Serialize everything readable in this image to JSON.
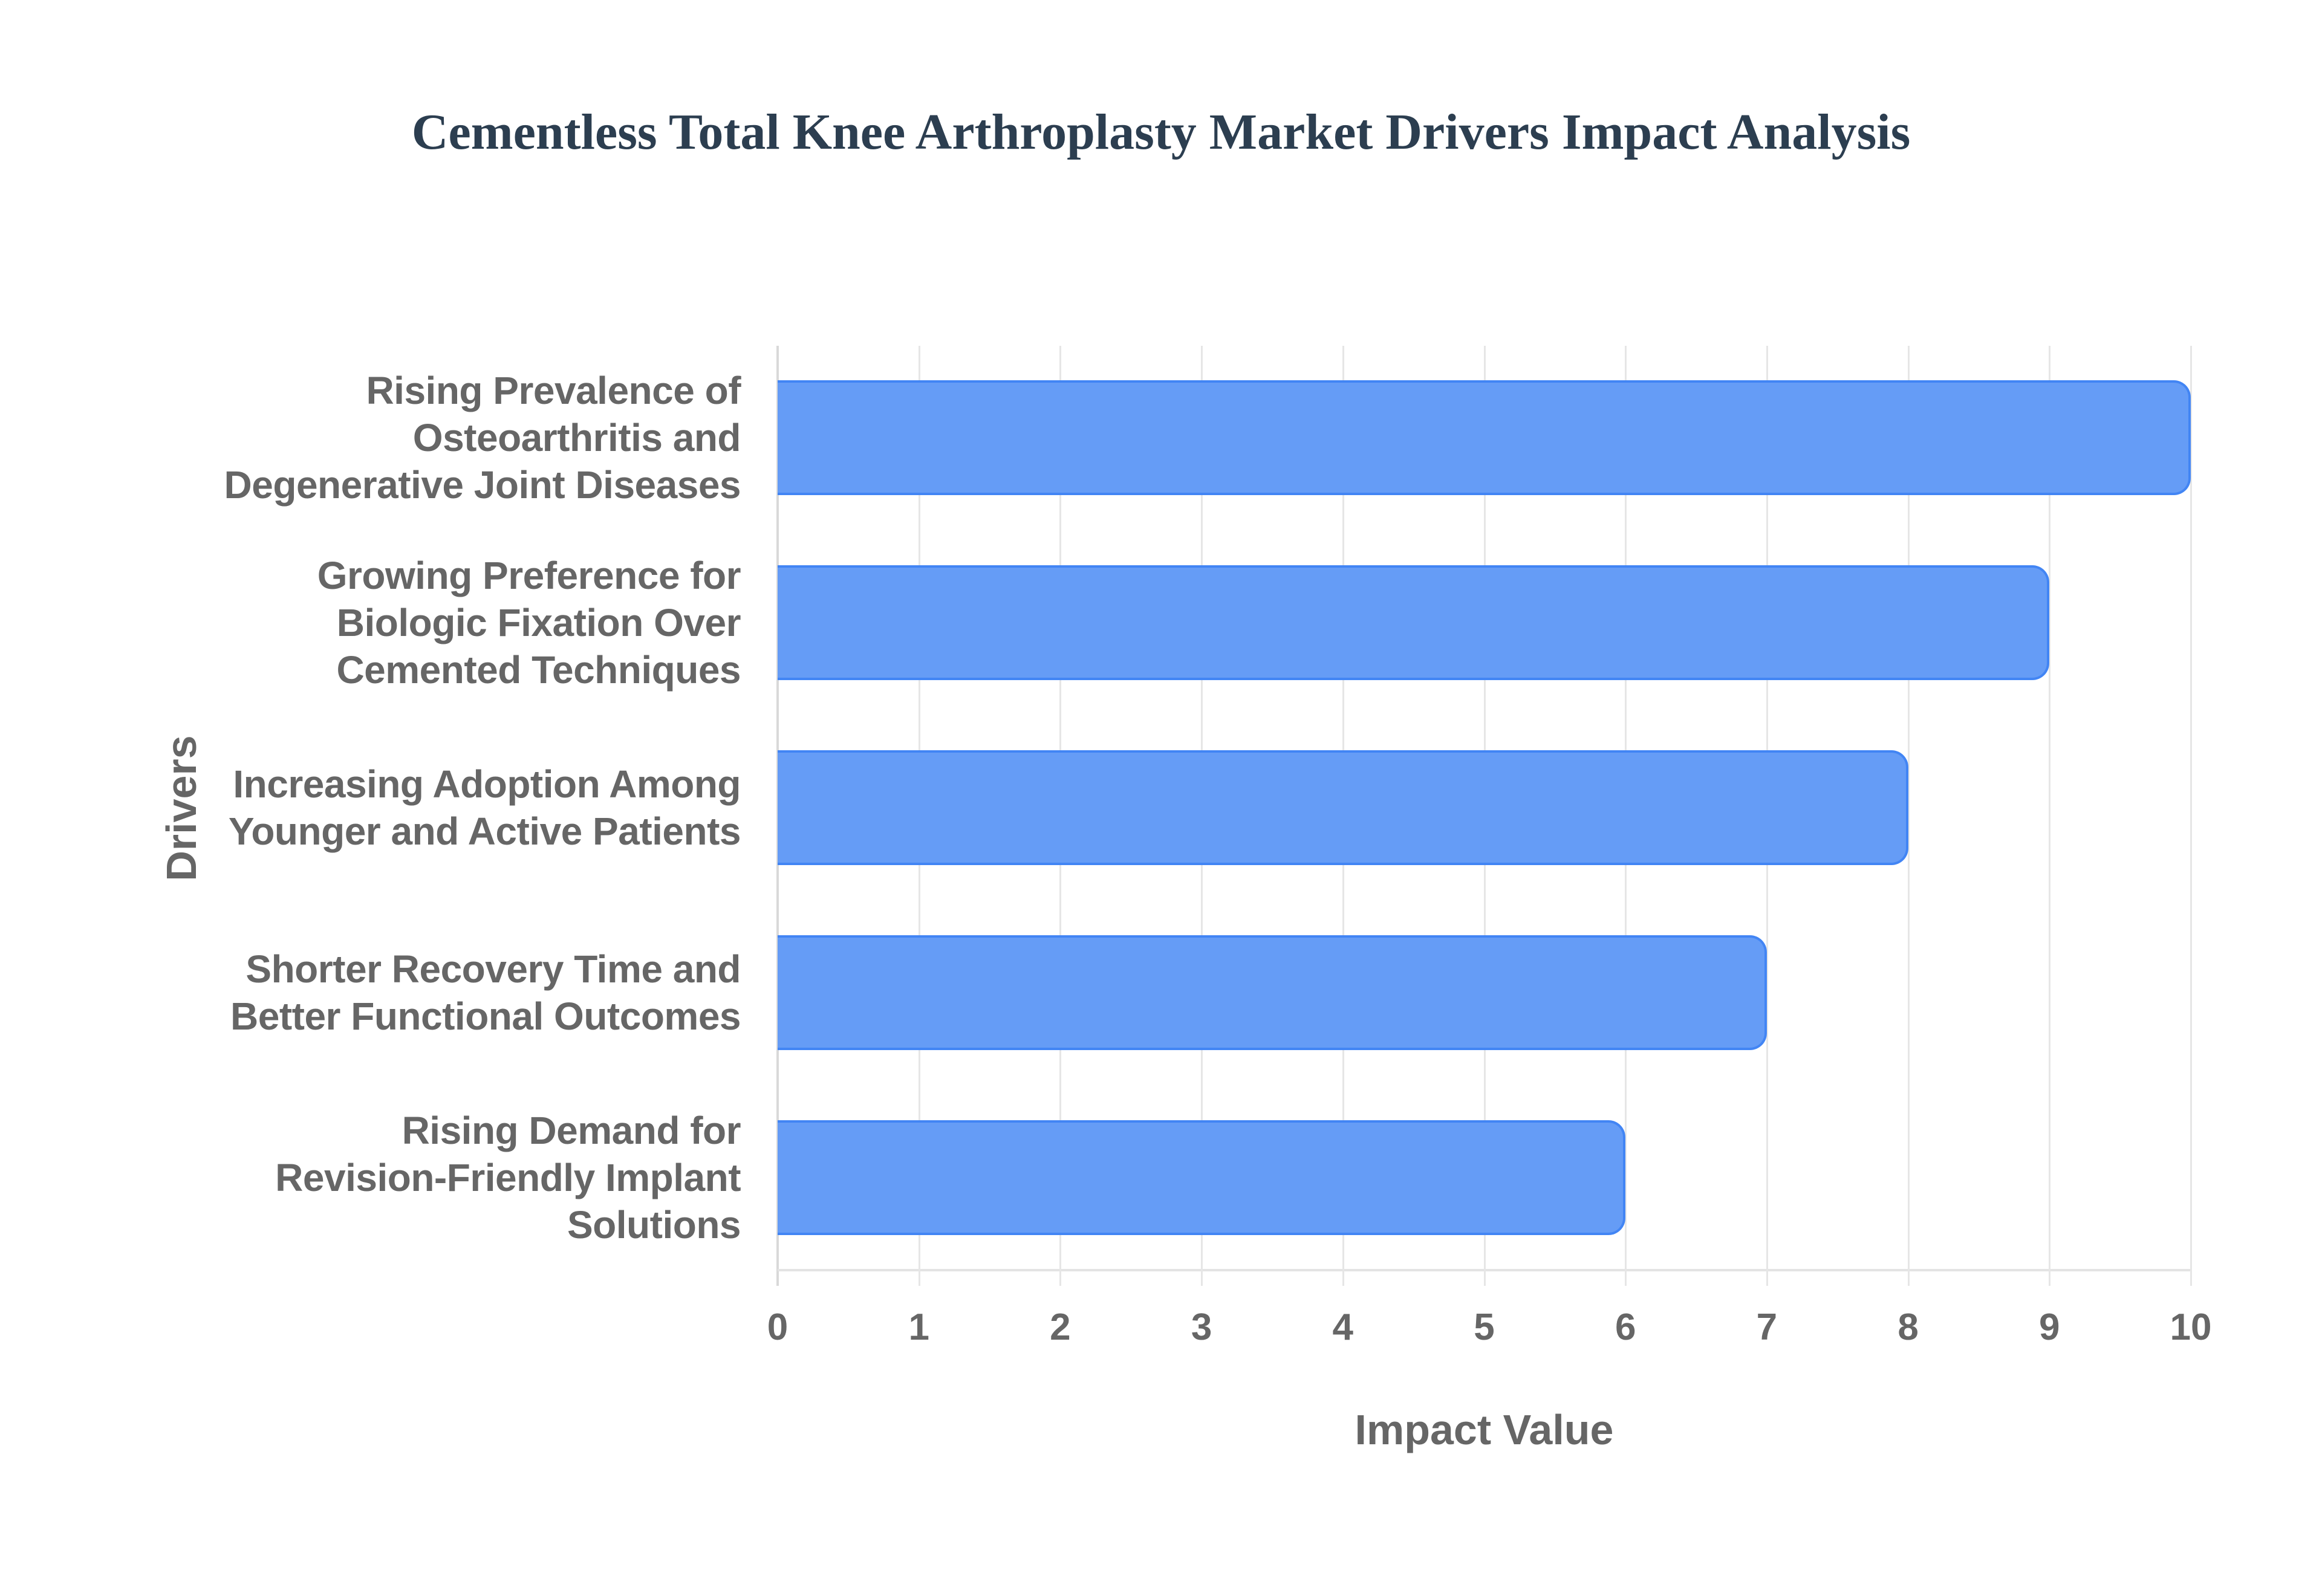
{
  "chart_data": {
    "type": "bar",
    "orientation": "horizontal",
    "title": "Cementless Total Knee Arthroplasty Market Drivers Impact Analysis",
    "xlabel": "Impact Value",
    "ylabel": "Drivers",
    "categories": [
      "Rising Prevalence of Osteoarthritis and Degenerative Joint Diseases",
      "Growing Preference for Biologic Fixation Over Cemented Techniques",
      "Increasing Adoption Among Younger and Active Patients",
      "Shorter Recovery Time and Better Functional Outcomes",
      "Rising Demand for Revision-Friendly Implant Solutions"
    ],
    "category_lines": [
      "Rising Prevalence of\nOsteoarthritis and\nDegenerative Joint Diseases",
      "Growing Preference for\nBiologic Fixation Over\nCemented Techniques",
      "Increasing Adoption Among\nYounger and Active Patients",
      "Shorter Recovery Time and\nBetter Functional Outcomes",
      "Rising Demand for\nRevision-Friendly Implant\nSolutions"
    ],
    "values": [
      10,
      9,
      8,
      7,
      6
    ],
    "xlim": [
      0,
      10
    ],
    "xticks": [
      "0",
      "1",
      "2",
      "3",
      "4",
      "5",
      "6",
      "7",
      "8",
      "9",
      "10"
    ],
    "grid": true,
    "legend": null,
    "colors": {
      "bar_fill": "#6099f6",
      "bar_border": "#4285f4",
      "title": "#2c3e50",
      "axis_text": "#666666",
      "grid": "#e6e6e6"
    }
  }
}
